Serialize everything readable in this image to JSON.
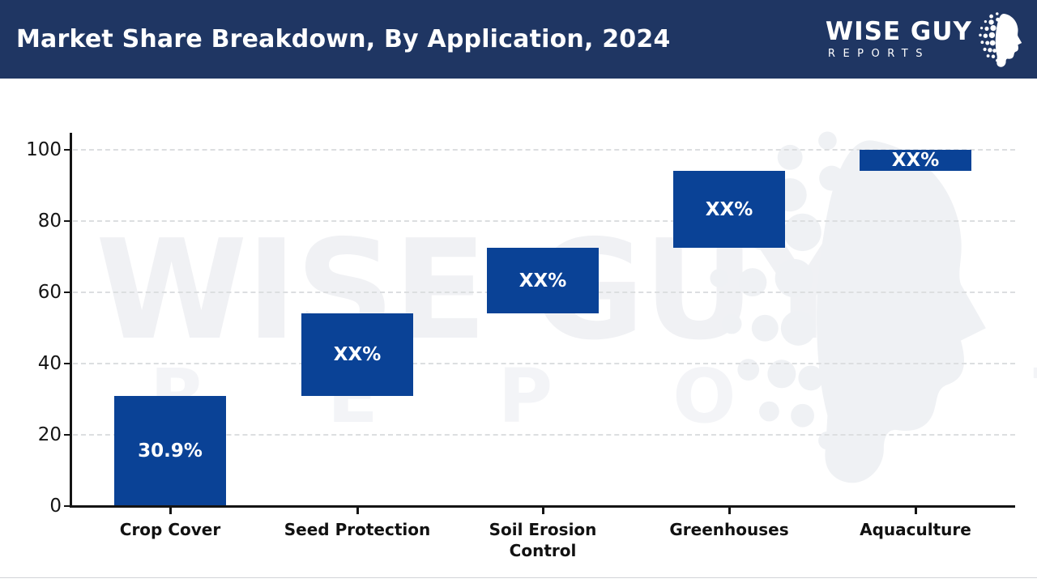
{
  "header": {
    "title": "Market Share Breakdown, By Application, 2024",
    "logo": {
      "name": "WISE GUY",
      "subtitle": "REPORTS"
    }
  },
  "watermark": {
    "line1": "WISE GUY",
    "line2": "R E P O R T S"
  },
  "colors": {
    "header_bg": "#1f3663",
    "bar": "#0a4296",
    "bar_label": "#ffffff",
    "grid": "#dcdee0",
    "axis": "#141414",
    "watermark": "#f0f1f4"
  },
  "chart_data": {
    "type": "bar",
    "subtype": "waterfall",
    "title": "Market Share Breakdown, By Application, 2024",
    "xlabel": "",
    "ylabel": "",
    "ylim": [
      0,
      100
    ],
    "yticks": [
      0,
      20,
      40,
      60,
      80,
      100
    ],
    "grid": "horizontal-dashed",
    "legend": "none",
    "categories": [
      "Crop Cover",
      "Seed Protection",
      "Soil Erosion\nControl",
      "Greenhouses",
      "Aquaculture"
    ],
    "bars": [
      {
        "category": "Crop Cover",
        "start": 0,
        "end": 30.9,
        "label": "30.9%"
      },
      {
        "category": "Seed Protection",
        "start": 30.9,
        "end": 54.0,
        "label": "XX%"
      },
      {
        "category": "Soil Erosion\nControl",
        "start": 54.0,
        "end": 72.4,
        "label": "XX%"
      },
      {
        "category": "Greenhouses",
        "start": 72.4,
        "end": 94.0,
        "label": "XX%"
      },
      {
        "category": "Aquaculture",
        "start": 94.0,
        "end": 100.0,
        "label": "XX%"
      }
    ]
  }
}
